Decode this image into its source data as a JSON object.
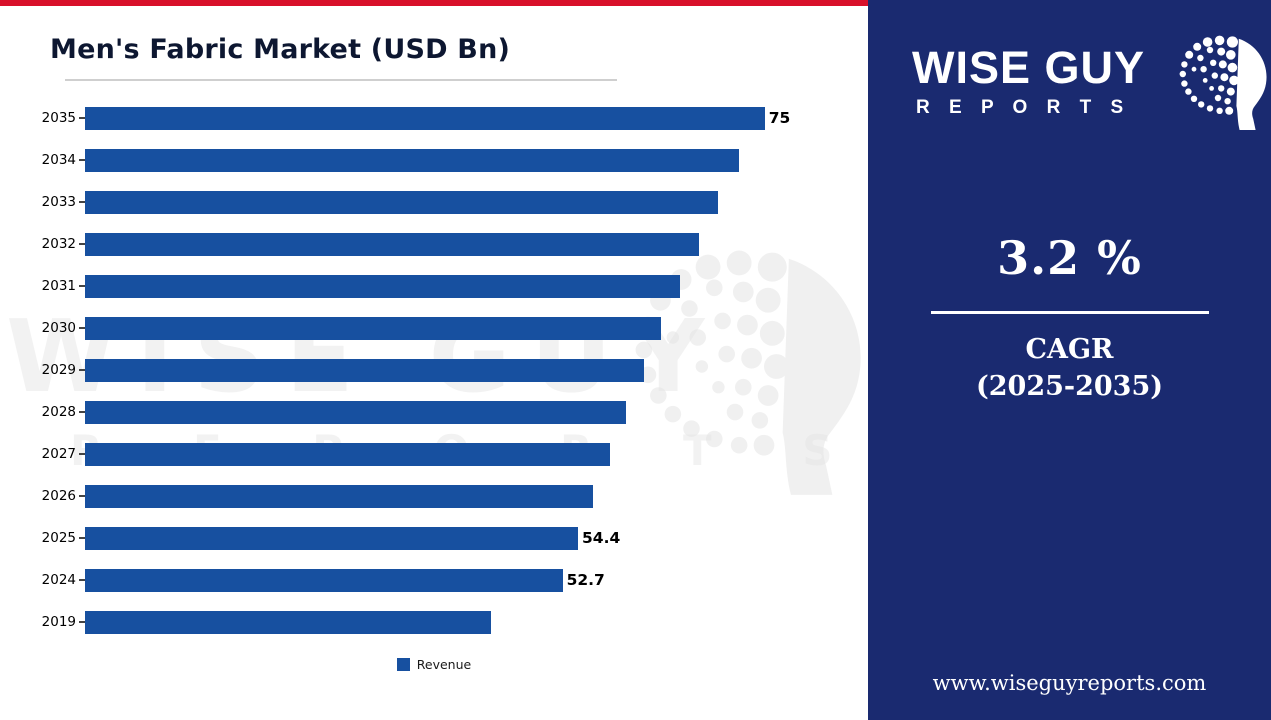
{
  "header": {
    "title": "Men's Fabric Market (USD Bn)"
  },
  "legend": {
    "label": "Revenue"
  },
  "side_panel": {
    "logo_line1": "WISE GUY",
    "logo_line2": "R E P O R T S",
    "cagr_value": "3.2 %",
    "cagr_line1": "CAGR",
    "cagr_line2": "(2025-2035)",
    "website": "www.wiseguyreports.com"
  },
  "watermark": {
    "line1": "WISE GUY",
    "line2": "R E P O R T S"
  },
  "colors": {
    "bar": "#1750a0",
    "panel_bg": "#1a2a70",
    "top_strip": "#d8102a",
    "title_text": "#0d1731"
  },
  "chart_data": {
    "type": "bar",
    "orientation": "horizontal",
    "title": "Men's Fabric Market (USD Bn)",
    "series_name": "Revenue",
    "categories": [
      "2035",
      "2034",
      "2033",
      "2032",
      "2031",
      "2030",
      "2029",
      "2028",
      "2027",
      "2026",
      "2025",
      "2024",
      "2019"
    ],
    "values": [
      75,
      72.2,
      69.9,
      67.7,
      65.6,
      63.6,
      61.7,
      59.7,
      57.9,
      56.1,
      54.4,
      52.7,
      44.8
    ],
    "value_labels": [
      "75",
      "",
      "",
      "",
      "",
      "",
      "",
      "",
      "",
      "",
      "54.4",
      "52.7",
      ""
    ],
    "xlim": [
      0,
      80
    ],
    "xlabel": "",
    "ylabel": "",
    "grid": false,
    "legend_position": "bottom"
  }
}
